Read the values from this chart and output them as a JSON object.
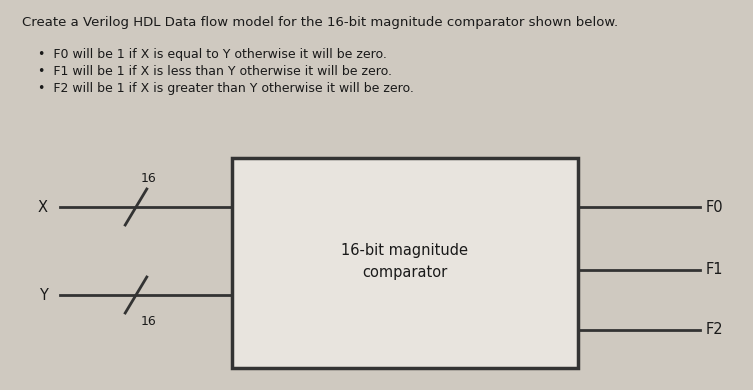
{
  "title": "Create a Verilog HDL Data flow model for the 16-bit magnitude comparator shown below.",
  "bullets": [
    "F0 will be 1 if X is equal to Y otherwise it will be zero.",
    "F1 will be 1 if X is less than Y otherwise it will be zero.",
    "F2 will be 1 if X is greater than Y otherwise it will be zero."
  ],
  "box_label_line1": "16-bit magnitude",
  "box_label_line2": "comparator",
  "input_x": "X",
  "input_y": "Y",
  "bus_width": "16",
  "outputs": [
    "F0",
    "F1",
    "F2"
  ],
  "bg_color": "#cfc9c0",
  "box_color": "#e8e4de",
  "text_color": "#1a1a1a",
  "title_fontsize": 9.5,
  "bullet_fontsize": 9.0,
  "diagram_fontsize": 10.5,
  "label_fontsize": 10.5,
  "bus_fontsize": 9.0
}
